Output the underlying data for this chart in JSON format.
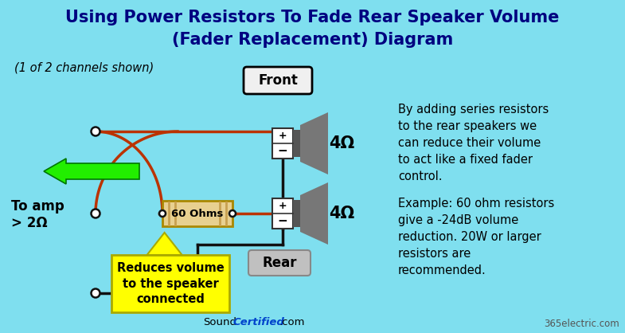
{
  "bg_color": "#7FDFEF",
  "title_line1": "Using Power Resistors To Fade Rear Speaker Volume",
  "title_line2": "(Fader Replacement) Diagram",
  "title_color": "#000080",
  "title_fontsize": 15,
  "subtitle": "(1 of 2 channels shown)",
  "subtitle_color": "#000000",
  "subtitle_fontsize": 10.5,
  "front_label": "Front",
  "rear_label": "Rear",
  "front_ohm": "4Ω",
  "rear_ohm": "4Ω",
  "resistor_label": "60 Ohms",
  "to_amp_label": "To amp\n> 2Ω",
  "yellow_box_text": "Reduces volume\nto the speaker\nconnected",
  "right_text1": "By adding series resistors\nto the rear speakers we\ncan reduce their volume\nto act like a fixed fader\ncontrol.",
  "right_text2": "Example: 60 ohm resistors\ngive a -24dB volume\nreduction. 20W or larger\nresistors are\nrecommended.",
  "soundcertified_1": "Sound",
  "soundcertified_2": "Certified",
  "soundcertified_3": ".com",
  "watermark": "365electric.com",
  "wire_red": "#BB3300",
  "wire_black": "#111111",
  "resistor_fill": "#E8D090",
  "resistor_edge": "#AA8800",
  "resistor_stripe": "#C8A050",
  "arrow_color": "#22EE00",
  "arrow_edge": "#007700",
  "yellow_fill": "#FFFF00",
  "yellow_edge": "#AAAA00",
  "front_box_fill": "#F0F0F0",
  "front_box_edge": "#000000",
  "rear_box_fill": "#C0C0C0",
  "rear_box_edge": "#888888",
  "node_fill": "white",
  "node_edge": "#111111",
  "speaker_terminal_fill": "white",
  "speaker_terminal_edge": "#333333",
  "speaker_body_color": "#555555",
  "speaker_cone_color": "#777777"
}
